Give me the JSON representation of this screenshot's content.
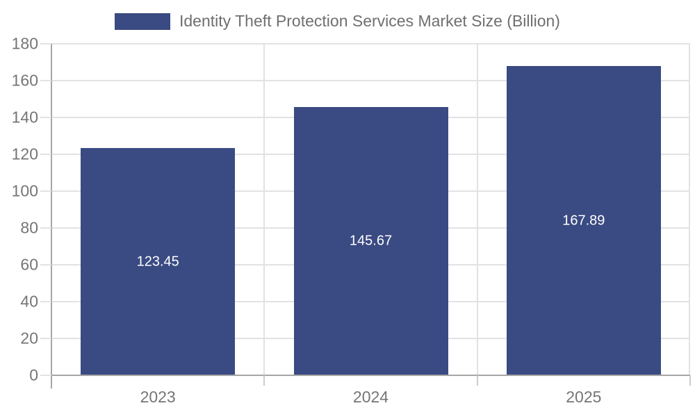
{
  "legend": {
    "swatch_icon": "legend-color-swatch",
    "label": "Identity Theft Protection Services Market Size (Billion)"
  },
  "chart_data": {
    "type": "bar",
    "title": "Identity Theft Protection Services Market Size (Billion)",
    "categories": [
      "2023",
      "2024",
      "2025"
    ],
    "values": [
      123.45,
      145.67,
      167.89
    ],
    "data_labels": [
      "123.45",
      "145.67",
      "167.89"
    ],
    "xlabel": "",
    "ylabel": "",
    "ylim": [
      0,
      180
    ],
    "ytick_step": 20,
    "ytick_labels": [
      "0",
      "20",
      "40",
      "60",
      "80",
      "100",
      "120",
      "140",
      "160",
      "180"
    ],
    "grid": true,
    "legend_position": "top-center",
    "data_label_position": "inside-center"
  },
  "colors": {
    "bar": "#3a4a82",
    "grid": "#e2e2e2",
    "axis": "#a5a5a5",
    "tick_text": "#757575",
    "legend_text": "#6f6f6f",
    "data_label": "#ffffff",
    "background": "#ffffff"
  }
}
